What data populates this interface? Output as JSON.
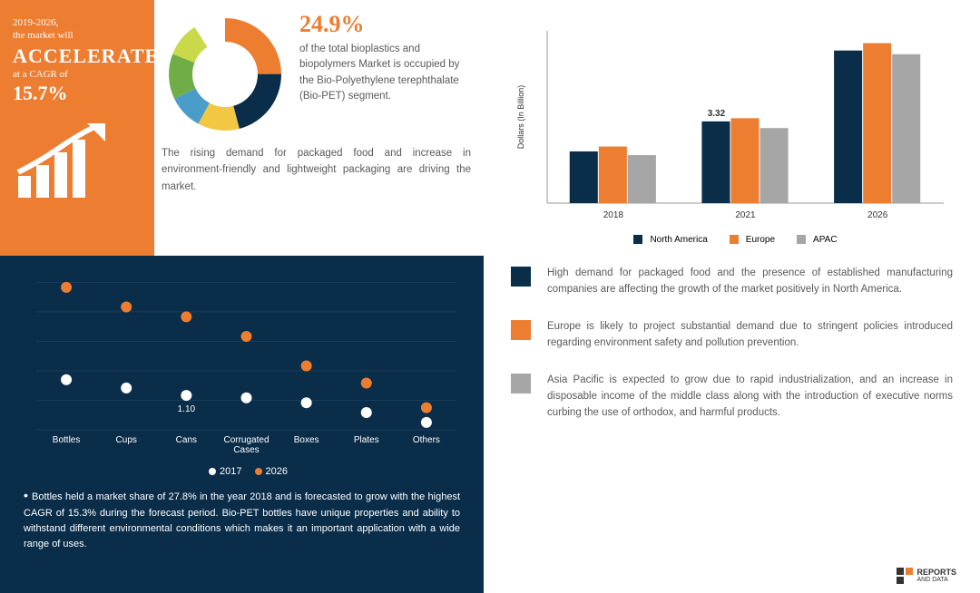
{
  "cagr_card": {
    "years": "2019-2026,",
    "line2": "the market will",
    "accelerate": "ACCELERATE",
    "at": "at a CAGR of",
    "pct": "15.7%"
  },
  "donut": {
    "type": "donut",
    "pct_label": "24.9%",
    "desc": "of the total bioplastics and biopolymers Market is occupied by the Bio-Polyethylene terephthalate (Bio-PET) segment.",
    "below": "The rising demand for packaged food and increase in environment-friendly and lightweight packaging are driving the market.",
    "slices": [
      {
        "value": 24.9,
        "color": "#ed7d31"
      },
      {
        "value": 21,
        "color": "#0a2d4a"
      },
      {
        "value": 12,
        "color": "#f2c744"
      },
      {
        "value": 10,
        "color": "#4a9cc9"
      },
      {
        "value": 13,
        "color": "#70ad47"
      },
      {
        "value": 10,
        "color": "#c9d94a"
      },
      {
        "value": 9.1,
        "color": "#ffffff"
      }
    ],
    "inner_radius": 36,
    "outer_radius": 62,
    "background": "#ffffff"
  },
  "scatter": {
    "type": "dot-lollipop",
    "background": "#0a2d4a",
    "categories": [
      "Bottles",
      "Cups",
      "Cans",
      "Corrugated Cases",
      "Boxes",
      "Plates",
      "Others"
    ],
    "series": [
      {
        "name": "2017",
        "color": "#ffffff",
        "values": [
          1.42,
          1.25,
          1.1,
          1.05,
          0.95,
          0.75,
          0.55
        ]
      },
      {
        "name": "2026",
        "color": "#ed7d31",
        "values": [
          3.3,
          2.9,
          2.7,
          2.3,
          1.7,
          1.35,
          0.85
        ]
      }
    ],
    "y_min": 0.4,
    "y_max": 3.5,
    "gridline_color": "#2a4d6a",
    "gridlines_y": [
      0.4,
      1.0,
      1.6,
      2.2,
      2.8,
      3.4
    ],
    "value_label": {
      "category": "Cans",
      "series": "2017",
      "text": "1.10"
    },
    "dot_radius": 6,
    "label_fontsize": 10,
    "legend_dot_radius": 4,
    "note": "Bottles held a market share of 27.8% in the year 2018 and is forecasted to grow with the highest CAGR of 15.3% during the forecast period. Bio-PET bottles have unique properties and ability to withstand different environmental conditions which makes it an important application with a wide range of uses."
  },
  "bars": {
    "type": "grouped-bar",
    "ylabel": "Dollars (In Billion)",
    "ylabel_fontsize": 9,
    "categories": [
      "2018",
      "2021",
      "2026"
    ],
    "series": [
      {
        "name": "North America",
        "color": "#0a2d4a",
        "values": [
          2.1,
          3.32,
          6.2
        ]
      },
      {
        "name": "Europe",
        "color": "#ed7d31",
        "values": [
          2.3,
          3.45,
          6.5
        ]
      },
      {
        "name": "APAC",
        "color": "#a6a6a6",
        "values": [
          1.95,
          3.05,
          6.05
        ]
      }
    ],
    "y_min": 0,
    "y_max": 7,
    "value_label": {
      "category": "2021",
      "series": "North America",
      "text": "3.32"
    },
    "bar_width": 0.22,
    "group_gap": 0.4,
    "label_fontsize": 10,
    "axis_color": "#999999",
    "background": "#ffffff"
  },
  "regions": [
    {
      "color": "#0a2d4a",
      "text": "High demand for packaged food and the presence of established manufacturing companies are affecting the growth of the market positively in North America."
    },
    {
      "color": "#ed7d31",
      "text": "Europe is likely to project substantial demand due to stringent policies introduced regarding environment safety and pollution prevention."
    },
    {
      "color": "#a6a6a6",
      "text": "Asia Pacific is expected to grow due to rapid industrialization, and an increase in disposable income of the middle class along with the introduction of executive norms curbing the use of orthodox, and harmful products."
    }
  ],
  "logo": {
    "brand": "REPORTS",
    "sub": "AND DATA"
  }
}
